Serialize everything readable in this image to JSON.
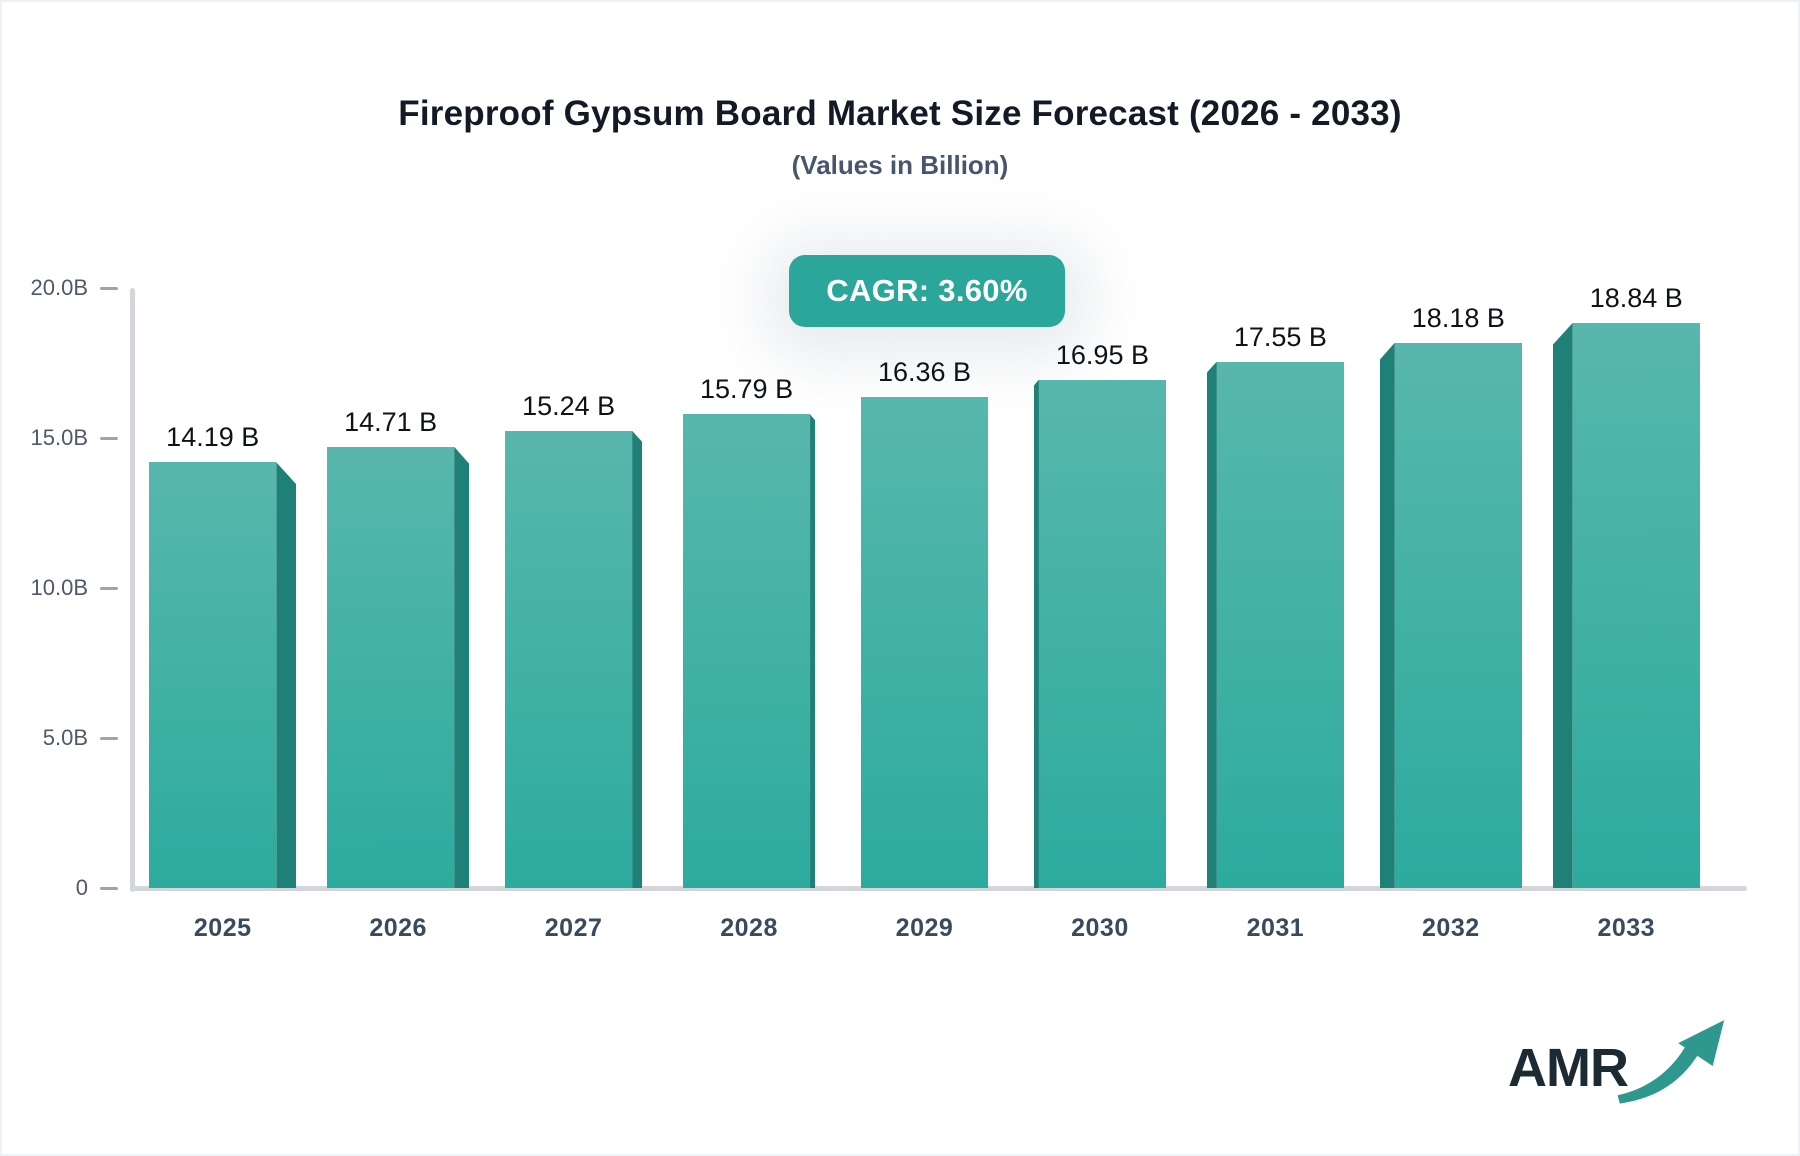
{
  "header": {
    "title": "Fireproof Gypsum Board Market Size Forecast (2026 - 2033)",
    "subtitle": "(Values in Billion)"
  },
  "badge": {
    "label": "CAGR: 3.60%",
    "background": "#2BA69B",
    "text_color": "#FFFFFF"
  },
  "chart_data": {
    "type": "bar",
    "title": "Fireproof Gypsum Board Market Size Forecast (2026 - 2033)",
    "subtitle": "(Values in Billion)",
    "categories": [
      "2025",
      "2026",
      "2027",
      "2028",
      "2029",
      "2030",
      "2031",
      "2032",
      "2033"
    ],
    "values": [
      14.19,
      14.71,
      15.24,
      15.79,
      16.36,
      16.95,
      17.55,
      18.18,
      18.84
    ],
    "bar_labels": [
      "14.19 B",
      "14.71 B",
      "15.24 B",
      "15.79 B",
      "16.36 B",
      "16.95 B",
      "17.55 B",
      "18.18 B",
      "18.84 B"
    ],
    "annotation": "CAGR: 3.60%",
    "xlabel": "",
    "ylabel": "",
    "ylim": [
      0,
      20
    ],
    "y_ticks": [
      {
        "label": "20.0B",
        "value": 20
      },
      {
        "label": "15.0B",
        "value": 15
      },
      {
        "label": "10.0B",
        "value": 10
      },
      {
        "label": "5.0B",
        "value": 5
      },
      {
        "label": "0",
        "value": 0
      }
    ],
    "grid": false,
    "legend_position": "none",
    "style": "3d-perspective-bars, center vanishing point"
  },
  "colors": {
    "bar_top": "#58B7AC",
    "bar_bottom": "#2CAB9E",
    "bar_side": "#1F8078",
    "axis_line": "#D3D7DC",
    "tick_dash": "#9AA5B0",
    "y_label_color": "#4E5A68",
    "x_label_color": "#3A4A5E",
    "value_label_color": "#0E1318",
    "title_color": "#131A26",
    "subtitle_color": "#46566C"
  },
  "logo": {
    "text": "AMR",
    "text_color": "#1C2B33",
    "arrow_color": "#2E988F"
  }
}
